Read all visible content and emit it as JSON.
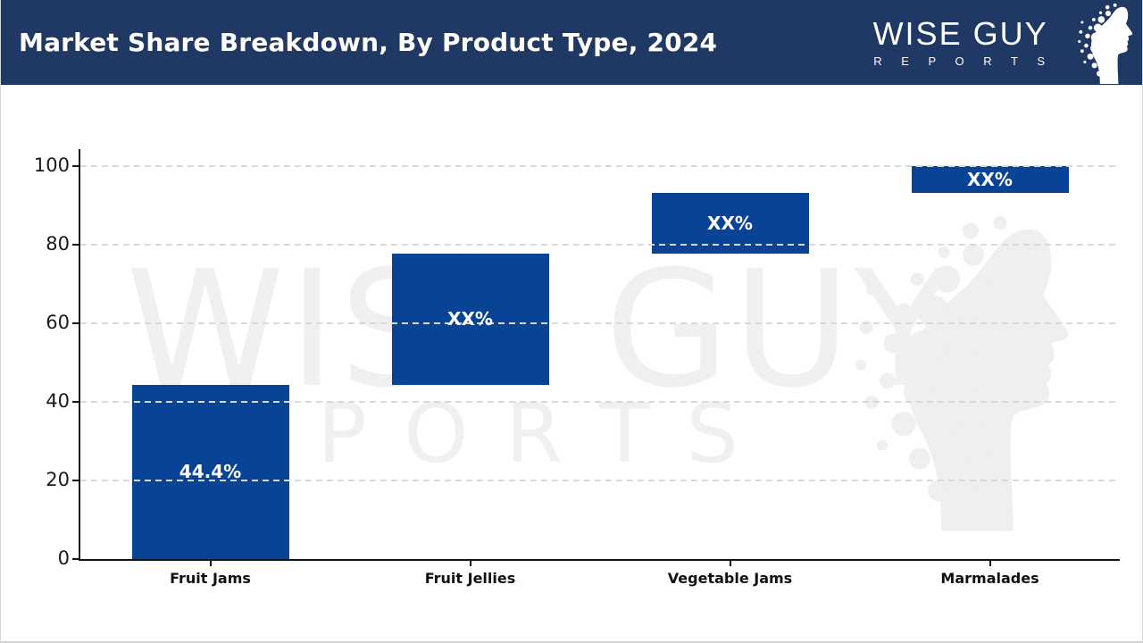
{
  "page": {
    "background": "#ffffff",
    "edge_border_color": "#d9d9d9"
  },
  "header": {
    "background": "#203864",
    "title": "Market Share Breakdown, By Product Type, 2024",
    "logo": {
      "line1": "WISE GUY",
      "line2": "R E P O R T S"
    }
  },
  "watermark": {
    "line1": "WISE GUY",
    "line2": "R E P O R T S"
  },
  "chart_data": {
    "type": "bar",
    "subtype": "waterfall",
    "title": "Market Share Breakdown, By Product Type, 2024",
    "categories": [
      "Fruit Jams",
      "Fruit Jellies",
      "Vegetable Jams",
      "Marmalades"
    ],
    "xlabel": "",
    "ylabel": "",
    "ylim": [
      0,
      100
    ],
    "yticks": [
      0,
      20,
      40,
      60,
      80,
      100
    ],
    "grid": "horizontal-dashed",
    "legend": "none",
    "bar_color": "#084396",
    "bar_label_color": "#ffffff",
    "segments": [
      {
        "category": "Fruit Jams",
        "start": 0,
        "end": 44.4,
        "label": "44.4%",
        "estimated_value": 44.4
      },
      {
        "category": "Fruit Jellies",
        "start": 44.4,
        "end": 77.7,
        "label": "XX%",
        "estimated_value": 33.3
      },
      {
        "category": "Vegetable Jams",
        "start": 77.7,
        "end": 93.2,
        "label": "XX%",
        "estimated_value": 15.5
      },
      {
        "category": "Marmalades",
        "start": 93.2,
        "end": 100,
        "label": "XX%",
        "estimated_value": 6.8
      }
    ]
  }
}
